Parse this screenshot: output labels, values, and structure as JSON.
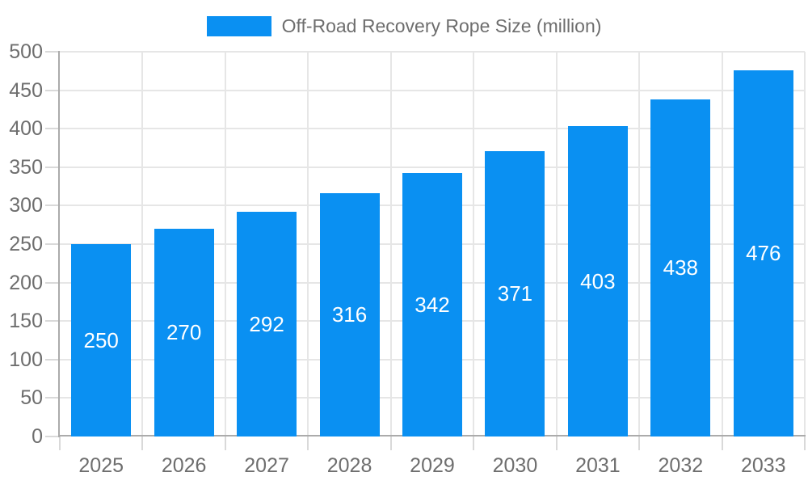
{
  "chart_data": {
    "type": "bar",
    "title": "Off-Road Recovery Rope Size (million)",
    "categories": [
      "2025",
      "2026",
      "2027",
      "2028",
      "2029",
      "2030",
      "2031",
      "2032",
      "2033"
    ],
    "values": [
      250,
      270,
      292,
      316,
      342,
      371,
      403,
      438,
      476
    ],
    "xlabel": "",
    "ylabel": "",
    "ylim": [
      0,
      500
    ],
    "yticks": [
      0,
      50,
      100,
      150,
      200,
      250,
      300,
      350,
      400,
      450,
      500
    ],
    "grid": true,
    "legend_position": "top",
    "value_label_position": "inside-center"
  },
  "colors": {
    "bar": "#0a90f2",
    "grid": "#e6e6e6",
    "tick": "#d9d9d9",
    "axis": "#ababab",
    "text": "#6e6e6e",
    "value_text": "#ffffff"
  }
}
